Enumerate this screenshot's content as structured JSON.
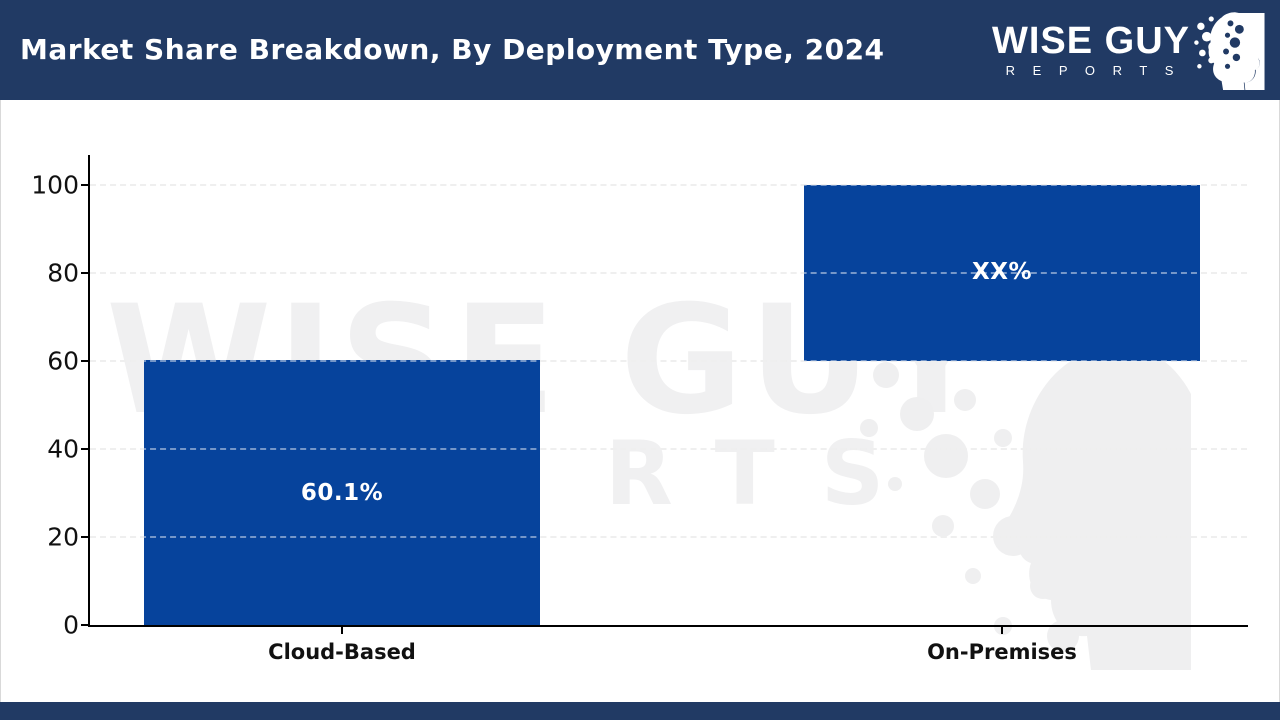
{
  "header": {
    "title": "Market Share Breakdown, By Deployment Type, 2024",
    "logo": {
      "line1": "WISE GUY",
      "line2": "REPORTS"
    }
  },
  "watermark": {
    "text_main": "WISE GUY",
    "text_sub": "RTS"
  },
  "colors": {
    "header_bg": "#213a64",
    "footer_bg": "#213a64",
    "bar": "#06439c",
    "grid": "#e2e2e2",
    "watermark": "#f0f0f1",
    "bar_label_text": "#ffffff",
    "axis": "#000000",
    "tick_text": "#111111"
  },
  "chart_data": {
    "type": "bar",
    "title": "Market Share Breakdown, By Deployment Type, 2024",
    "categories": [
      "Cloud-Based",
      "On-Premises"
    ],
    "bars": [
      {
        "category": "Cloud-Based",
        "label": "60.1%",
        "from": 0,
        "to": 60.1
      },
      {
        "category": "On-Premises",
        "label": "XX%",
        "from": 60.1,
        "to": 100
      }
    ],
    "yticks": [
      0,
      20,
      40,
      60,
      80,
      100
    ],
    "ylim": [
      0,
      106.7
    ],
    "xlabel": "",
    "ylabel": "",
    "grid": "horizontal-dashed",
    "legend": "none",
    "bar_color": "#06439c"
  }
}
